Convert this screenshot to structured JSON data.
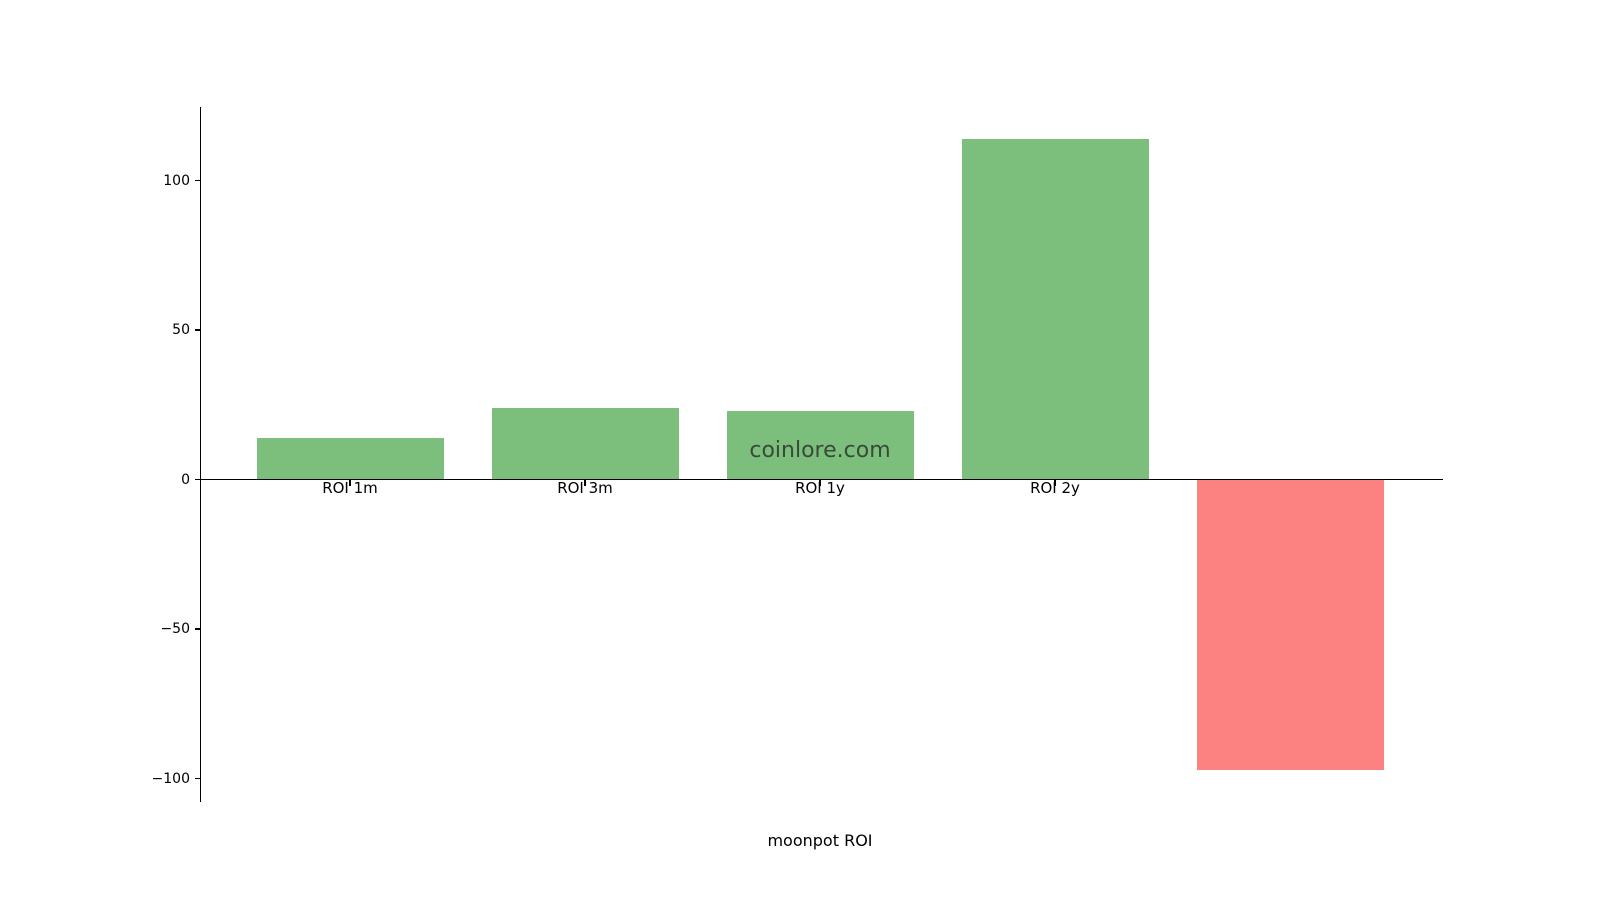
{
  "watermark": "coinlore.com",
  "chart_data": {
    "type": "bar",
    "title": "",
    "xlabel": "moonpot ROI",
    "ylabel": "",
    "categories": [
      "ROI 1m",
      "ROI 3m",
      "ROI 1y",
      "ROI 2y",
      ""
    ],
    "values": [
      14,
      24,
      23,
      114,
      -97
    ],
    "ylim": [
      -106.5,
      123.5
    ],
    "yticks": [
      100,
      50,
      0,
      -50,
      -100
    ],
    "ytick_labels": [
      "100",
      "50",
      "0",
      "−50",
      "−100"
    ],
    "positive_color": "#7cbe7c",
    "negative_color": "#fc8181",
    "axis_color": "#000000",
    "grid": false,
    "legend": false,
    "baseline": 0
  }
}
